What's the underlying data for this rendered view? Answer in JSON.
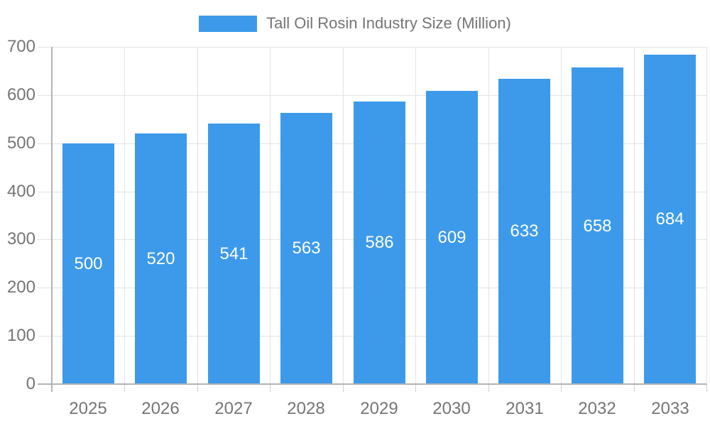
{
  "chart_data": {
    "type": "bar",
    "title": "Tall Oil Rosin Industry Size (Million)",
    "categories": [
      "2025",
      "2026",
      "2027",
      "2028",
      "2029",
      "2030",
      "2031",
      "2032",
      "2033"
    ],
    "values": [
      500,
      520,
      541,
      563,
      586,
      609,
      633,
      658,
      684
    ],
    "series": [
      {
        "name": "Tall Oil Rosin Industry Size (Million)",
        "values": [
          500,
          520,
          541,
          563,
          586,
          609,
          633,
          658,
          684
        ]
      }
    ],
    "xlabel": "",
    "ylabel": "",
    "ylim": [
      0,
      700
    ],
    "ytick_step": 100,
    "grid": true,
    "legend_position": "top",
    "value_labels": "inside-center",
    "colors": {
      "bar": "#3D9AEA",
      "value_label": "#FFFFFF",
      "axis_text": "#757575",
      "gridline": "#E3E3E3",
      "axis_line": "#B3B3B3",
      "tick": "#CFCFCF",
      "background": "#FFFFFF"
    }
  }
}
